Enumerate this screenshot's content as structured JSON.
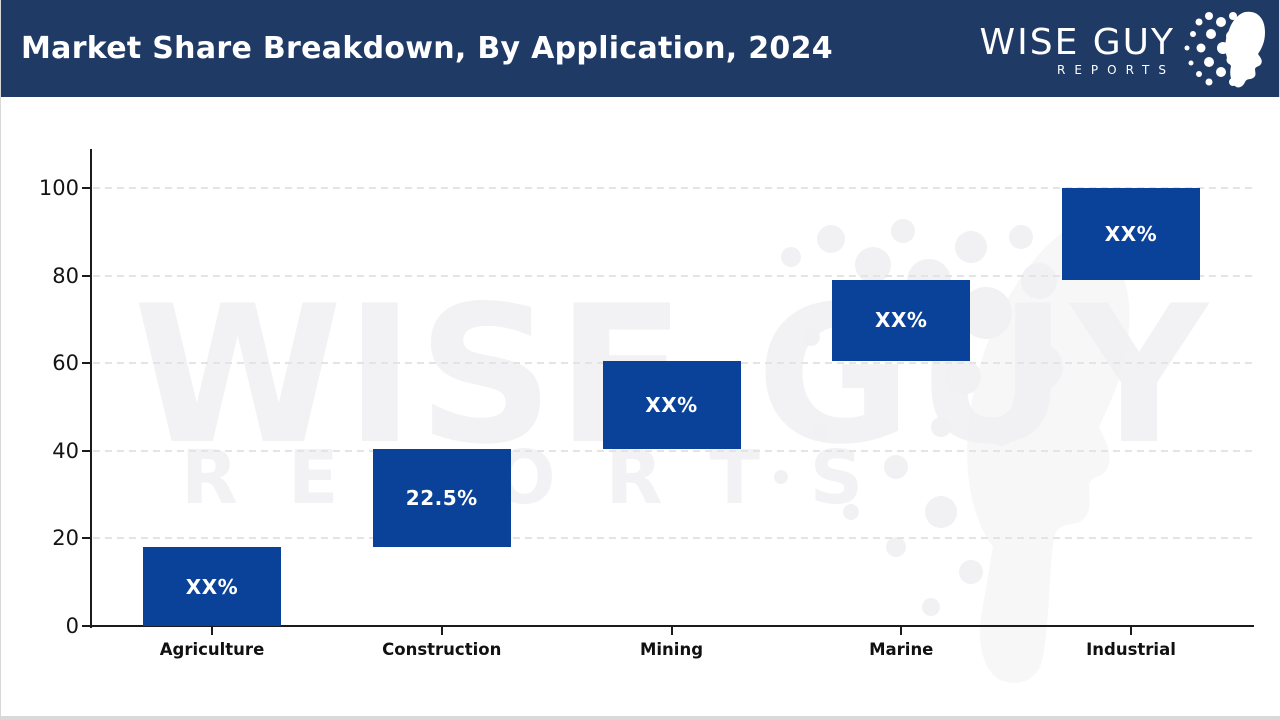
{
  "header": {
    "title": "Market Share Breakdown, By Application, 2024",
    "logo": {
      "line1": "WISE GUY",
      "line2": "REPORTS"
    }
  },
  "watermark": {
    "line1": "WISE GUY",
    "line2": "REPORTS"
  },
  "colors": {
    "header_bg": "#203a66",
    "bar": "#0a4199",
    "grid": "#e4e4e4",
    "axis": "#1b1b1b",
    "bar_label": "#ffffff",
    "watermark": "#f2f2f4"
  },
  "chart_data": {
    "type": "bar",
    "subtype": "waterfall",
    "title": "Market Share Breakdown, By Application, 2024",
    "categories": [
      "Agriculture",
      "Construction",
      "Mining",
      "Marine",
      "Industrial"
    ],
    "segments": [
      {
        "start": 0,
        "end": 18
      },
      {
        "start": 18,
        "end": 40.5
      },
      {
        "start": 40.5,
        "end": 60.5
      },
      {
        "start": 60.5,
        "end": 79
      },
      {
        "start": 79,
        "end": 100
      }
    ],
    "labels": [
      "XX%",
      "22.5%",
      "XX%",
      "XX%",
      "XX%"
    ],
    "yticks": [
      0,
      20,
      40,
      60,
      80,
      100
    ],
    "ylim": [
      0,
      109
    ],
    "xlabel": "",
    "ylabel": "",
    "grid": true,
    "grid_style": "dashed",
    "legend": false
  }
}
